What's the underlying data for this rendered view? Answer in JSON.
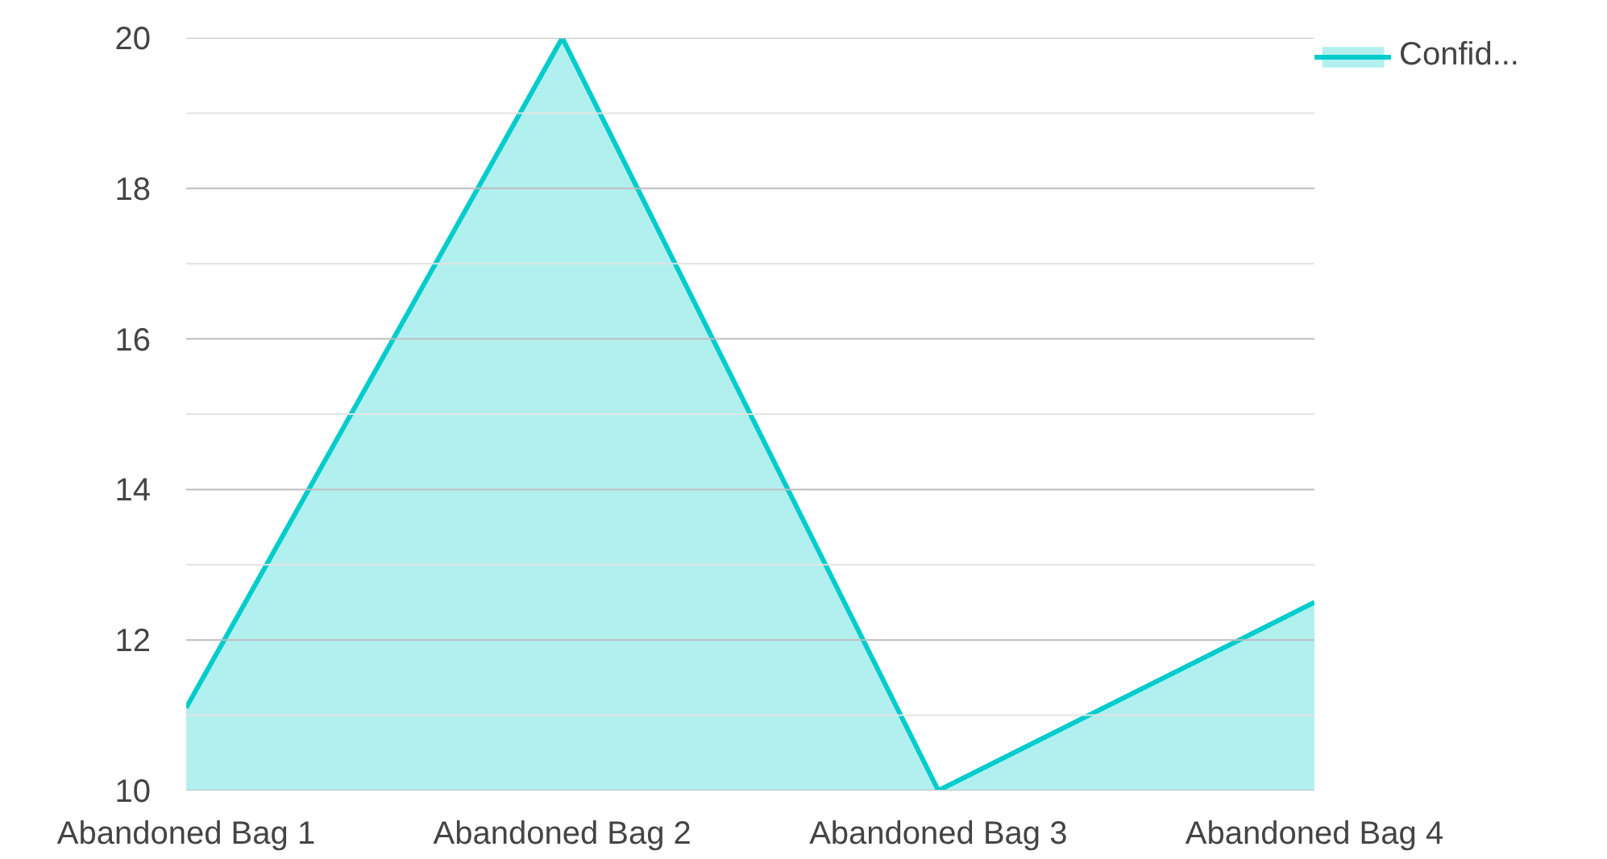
{
  "chart_data": {
    "type": "area",
    "categories": [
      "Abandoned Bag 1",
      "Abandoned Bag 2",
      "Abandoned Bag 3",
      "Abandoned Bag 4"
    ],
    "series": [
      {
        "name": "Confid...",
        "color": "#00cccc",
        "values": [
          11.1,
          20,
          10,
          12.5
        ]
      }
    ],
    "ylim": [
      10,
      20
    ],
    "yticks": [
      10,
      {
        "value": 11,
        "label": null
      },
      12,
      {
        "value": 13,
        "label": null
      },
      14,
      {
        "value": 15,
        "label": null
      },
      16,
      {
        "value": 17,
        "label": null
      },
      18,
      {
        "value": 19,
        "label": null
      },
      20
    ],
    "grid": "y",
    "legend": "top right"
  }
}
